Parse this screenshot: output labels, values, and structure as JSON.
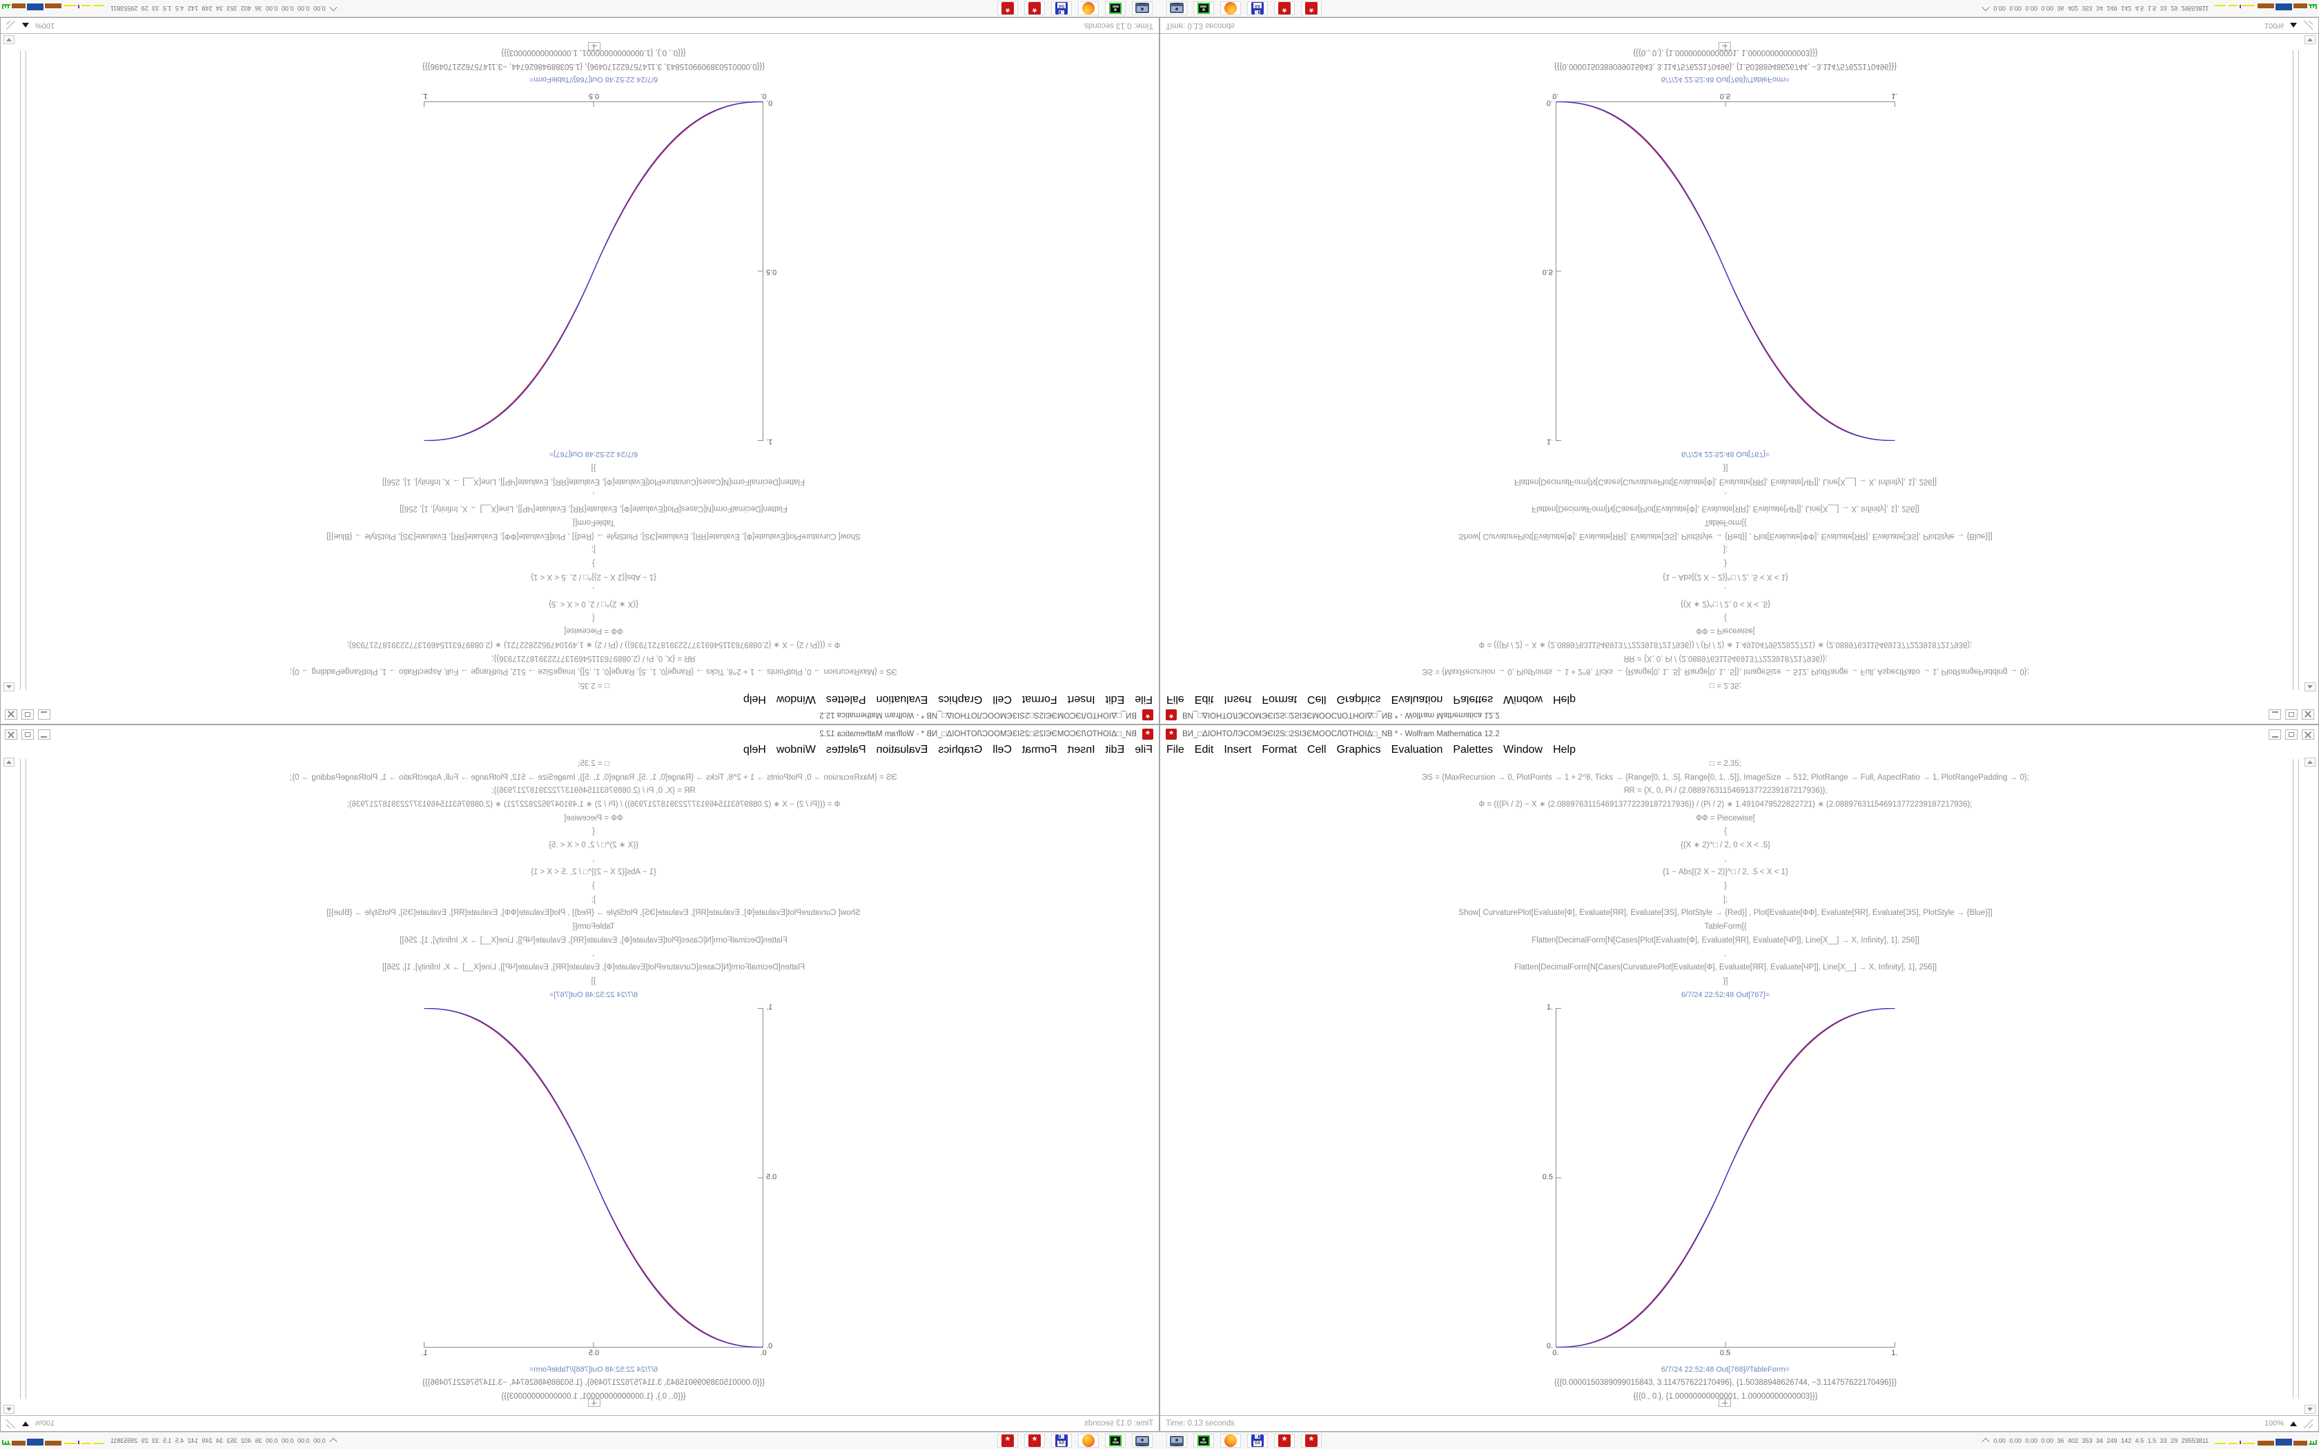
{
  "window": {
    "title": "ВИ_□ΔІОНТОЛЭСОМЭЄІ2Ѕ□2ЅІЗЄМООСЛОТНОІΔ□_NB * - Wolfram Mathematica 12.2",
    "app_icon_glyph": "*",
    "menu": [
      "File",
      "Edit",
      "Insert",
      "Format",
      "Cell",
      "Graphics",
      "Evaluation",
      "Palettes",
      "Window",
      "Help"
    ],
    "code_lines": [
      "□ = 2.35;",
      "ЭЅ = {MaxRecursion → 0, PlotPoints → 1 + 2^8, Ticks → {Range[0, 1, .5], Range[0, 1, .5]}, ImageSize → 512, PlotRange → Full, AspectRatio → 1, PlotRangePadding → 0};",
      "ЯR = {X, 0, Pi / (2.088976311546913772239187217936)};",
      "Ф = (((Pi / 2) − X ∗ (2.088976311546913772239187217936)) / (Pi / 2) ∗ 1.4910479522822721) ∗ (2.088976311546913772239187217936);",
      "ФФ = Piecewise[",
      "{",
      "{(X ∗ 2)^□ / 2, 0 < X < .5}",
      ",",
      "{1 − Abs[(2 X − 2)]^□ / 2, .5 < X < 1}",
      "}",
      "];",
      "Show[  CurvaturePlot[Evaluate[Ф], Evaluate[ЯR], Evaluate[ЭЅ], PlotStyle → {Red}]  ,  Plot[Evaluate[ФФ], Evaluate[ЯR], Evaluate[ЭЅ], PlotStyle → {Blue}]]",
      "TableForm[{",
      "Flatten[DecimalForm[N[Cases[Plot[Evaluate[Ф], Evaluate[ЯR], Evaluate[ЧР]], Line[X__] → X, Infinity], 1], 256]]",
      ",",
      "Flatten[DecimalForm[N[Cases[CurvaturePlot[Evaluate[Ф], Evaluate[ЯR], Evaluate[ЧР]], Line[X__] → X, Infinity], 1], 256]]",
      "}]"
    ],
    "out_label_1": "6/7/24 22:52:48 Out[767]=",
    "out_label_2": "6/7/24 22:52:48 Out[768]//TableForm=",
    "tableform_line_1": "{{{0.0000150389099015843, 3.114757622170496}, {1.50388948626744, −3.114757622170496}}}",
    "tableform_line_2": "{{{0., 0.}, {1.00000000000001, 1.00000000000003}}}",
    "status_left": "Time: 0.13 seconds",
    "zoom_level": "100%"
  },
  "chart_data": {
    "type": "line",
    "title": "",
    "xlabel": "",
    "ylabel": "",
    "xlim": [
      0,
      1
    ],
    "ylim": [
      0,
      1
    ],
    "grid": false,
    "legend": false,
    "x_ticks": [
      0,
      0.5,
      1
    ],
    "x_tick_labels": [
      "0.",
      "0.5",
      "1."
    ],
    "y_ticks": [
      0,
      0.5,
      1
    ],
    "y_tick_labels": [
      "0.",
      "0.5",
      "1."
    ],
    "axis_color": "#8a8a8a",
    "samples_x": [
      0,
      0.1,
      0.2,
      0.3,
      0.4,
      0.5,
      0.6,
      0.7,
      0.8,
      0.9,
      1
    ],
    "series": [
      {
        "name": "CurvaturePlot[Ф] (Red)",
        "color": "#e02424",
        "shape_exponent": 2.3,
        "samples_y": [
          0,
          0.012,
          0.061,
          0.155,
          0.299,
          0.5,
          0.701,
          0.845,
          0.939,
          0.988,
          1
        ]
      },
      {
        "name": "Plot[ФФ] (Blue)",
        "color": "#3030d0",
        "shape_exponent": 2.35,
        "samples_y": [
          0,
          0.011,
          0.058,
          0.151,
          0.296,
          0.5,
          0.704,
          0.849,
          0.942,
          0.989,
          1
        ]
      }
    ],
    "formula": "y = (2x)^e/2 for 0<x<0.5 ; y = 1 - (2-2x)^e/2 for 0.5<x<1"
  },
  "taskbar": {
    "buttons": [
      "display-capture-icon",
      "green-device-icon",
      "firefox-icon",
      "floppy-64-icon",
      "wolfram-kernel-icon",
      "wolfram-kernel-icon"
    ],
    "floppy_label": "64",
    "kernel_glyph": "*",
    "tray_text": "0.00 0.00 0.00 0.00 36 402 353 34 249 142 4.5 1.5 33 29 29553811"
  },
  "colors": {
    "accent_red": "#c81616",
    "plot_red": "#e02424",
    "plot_blue": "#3030d0",
    "cell_label_blue": "#6e86c0",
    "chrome_gray": "#8f8f8f"
  }
}
